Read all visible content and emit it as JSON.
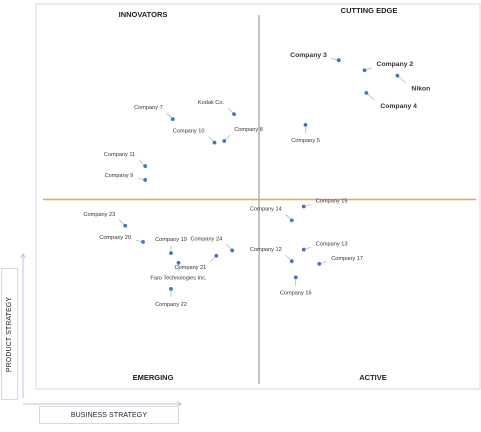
{
  "chart_data": {
    "type": "scatter",
    "title": "",
    "quadrants": {
      "top_left": "INNOVATORS",
      "top_right": "CUTTING EDGE",
      "bottom_left": "EMERGING",
      "bottom_right": "ACTIVE"
    },
    "xlabel": "BUSINESS STRATEGY",
    "ylabel": "PRODUCT STRATEGY",
    "xlim": [
      0,
      100
    ],
    "ylim": [
      0,
      100
    ],
    "grid": false,
    "divider_color": "#f0a24b",
    "point_color": "#4472c4",
    "points": [
      {
        "name": "Company 3",
        "x": 68.2,
        "y": 85.4,
        "bold": true,
        "label_pos": "left"
      },
      {
        "name": "Company 2",
        "x": 74.0,
        "y": 82.8,
        "bold": true,
        "label_pos": "right"
      },
      {
        "name": "Nikon",
        "x": 81.4,
        "y": 81.4,
        "bold": true,
        "label_pos": "below-right"
      },
      {
        "name": "Company 4",
        "x": 74.4,
        "y": 76.9,
        "bold": true,
        "label_pos": "below-right"
      },
      {
        "name": "Company 5",
        "x": 60.7,
        "y": 68.6,
        "bold": false,
        "label_pos": "below"
      },
      {
        "name": "Company 7",
        "x": 30.8,
        "y": 70.1,
        "bold": false,
        "label_pos": "above-left"
      },
      {
        "name": "Kodak Co.",
        "x": 44.6,
        "y": 71.4,
        "bold": false,
        "label_pos": "above-left"
      },
      {
        "name": "Company 8",
        "x": 42.4,
        "y": 64.4,
        "bold": false,
        "label_pos": "above-right"
      },
      {
        "name": "Company 10",
        "x": 40.2,
        "y": 64.0,
        "bold": false,
        "label_pos": "above-left"
      },
      {
        "name": "Company 11",
        "x": 24.6,
        "y": 57.9,
        "bold": false,
        "label_pos": "above-left"
      },
      {
        "name": "Company 9",
        "x": 24.6,
        "y": 54.3,
        "bold": false,
        "label_pos": "left"
      },
      {
        "name": "Company 14",
        "x": 57.6,
        "y": 43.8,
        "bold": false,
        "label_pos": "above-left"
      },
      {
        "name": "Company 15",
        "x": 60.3,
        "y": 47.4,
        "bold": false,
        "label_pos": "right"
      },
      {
        "name": "Company 13",
        "x": 60.3,
        "y": 36.2,
        "bold": false,
        "label_pos": "right"
      },
      {
        "name": "Company 12",
        "x": 57.6,
        "y": 33.2,
        "bold": false,
        "label_pos": "above-left"
      },
      {
        "name": "Company 17",
        "x": 63.8,
        "y": 32.5,
        "bold": false,
        "label_pos": "right"
      },
      {
        "name": "Company 16",
        "x": 58.5,
        "y": 29.0,
        "bold": false,
        "label_pos": "below"
      },
      {
        "name": "Company 23",
        "x": 20.1,
        "y": 42.4,
        "bold": false,
        "label_pos": "above-left"
      },
      {
        "name": "Company 20",
        "x": 24.1,
        "y": 38.2,
        "bold": false,
        "label_pos": "left"
      },
      {
        "name": "Company 19",
        "x": 30.4,
        "y": 35.3,
        "bold": false,
        "label_pos": "above"
      },
      {
        "name": "Company 24",
        "x": 44.2,
        "y": 36.0,
        "bold": false,
        "label_pos": "above-left"
      },
      {
        "name": "Company 21",
        "x": 40.6,
        "y": 34.6,
        "bold": false,
        "label_pos": "below-left"
      },
      {
        "name": "Faro Technologies Inc.",
        "x": 32.1,
        "y": 32.8,
        "bold": false,
        "label_pos": "below"
      },
      {
        "name": "Company 22",
        "x": 30.4,
        "y": 26.0,
        "bold": false,
        "label_pos": "below"
      }
    ]
  }
}
